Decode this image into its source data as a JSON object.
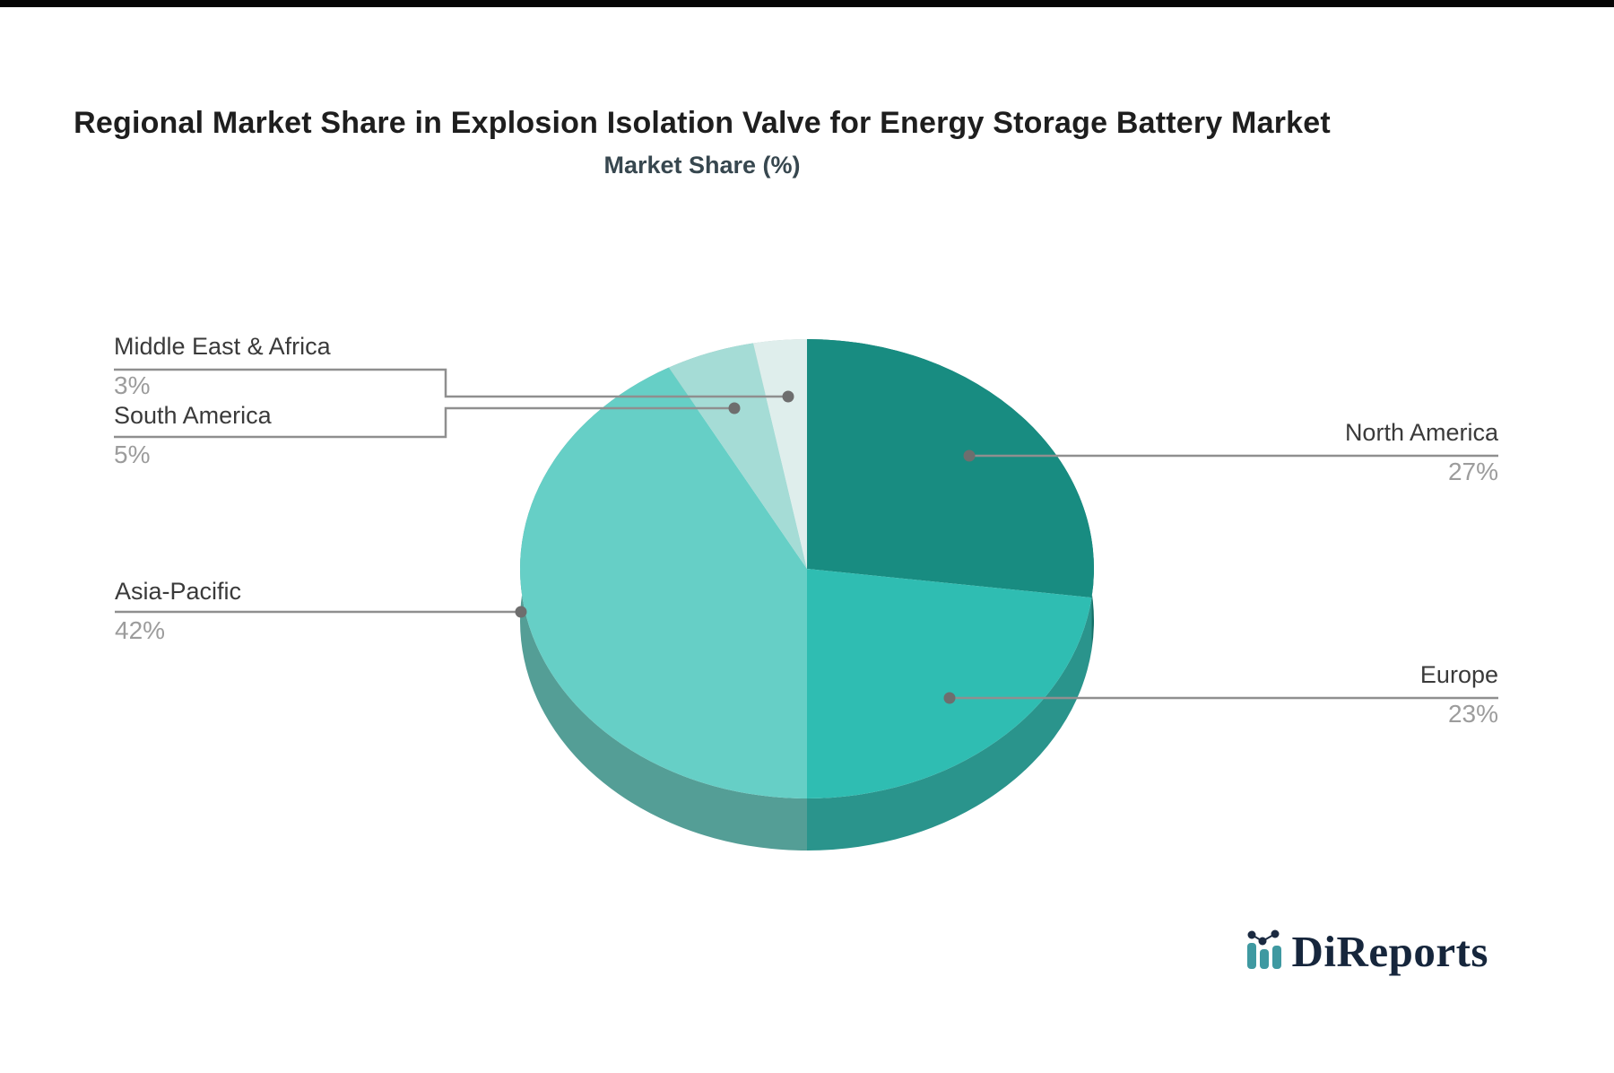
{
  "chart_data": {
    "type": "pie",
    "title": "Regional Market Share in Explosion Isolation Valve for Energy Storage Battery Market",
    "subtitle": "Market Share (%)",
    "unit": "%",
    "style": "3d-pie",
    "start_angle_deg": 0,
    "direction": "clockwise",
    "legend": "none",
    "slices": [
      {
        "label": "North America",
        "value": 27,
        "pct": "27%",
        "color": "#188c81",
        "side_color": "#137168",
        "label_side": "right"
      },
      {
        "label": "Europe",
        "value": 23,
        "pct": "23%",
        "color": "#2fbdb2",
        "side_color": "#2a948c",
        "label_side": "right"
      },
      {
        "label": "Asia-Pacific",
        "value": 42,
        "pct": "42%",
        "color": "#66cfc6",
        "side_color": "#549e96",
        "label_side": "left"
      },
      {
        "label": "South America",
        "value": 5,
        "pct": "5%",
        "color": "#a5dcd6",
        "side_color": "#85b2ac",
        "label_side": "left"
      },
      {
        "label": "Middle East & Africa",
        "value": 3,
        "pct": "3%",
        "color": "#dfeeec",
        "side_color": "#b4c7c3",
        "label_side": "left"
      }
    ]
  },
  "branding": {
    "logo_text": "DiReports",
    "logo_icon": "bar-line-chart-icon",
    "logo_text_color": "#16263c",
    "logo_bar_color": "#3f99a1"
  },
  "ui_colors": {
    "leader_line": "#8f8f8f",
    "leader_dot": "#6e6e6e",
    "label_text": "#3a3a3a",
    "pct_text": "#9c9c9c"
  }
}
